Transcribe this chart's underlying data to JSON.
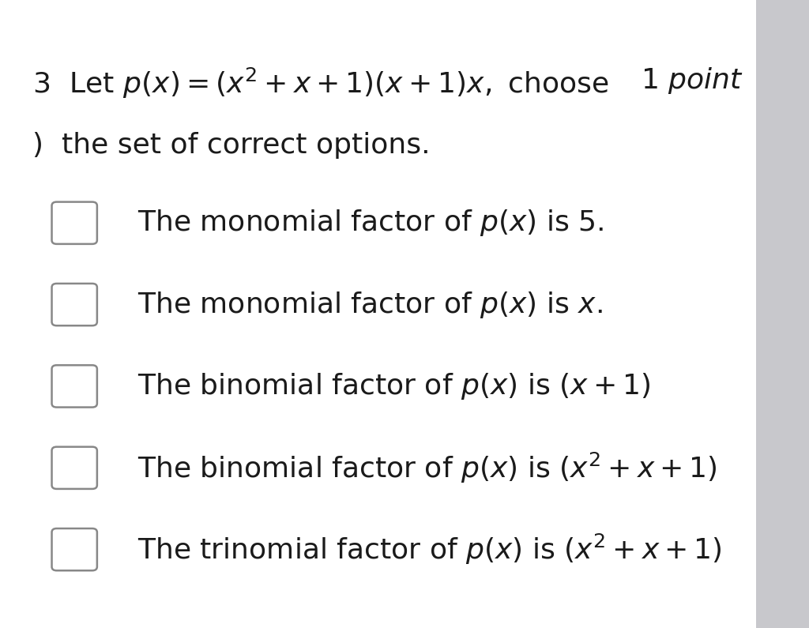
{
  "background_color": "#e8e8e8",
  "card_color": "#ffffff",
  "card_bg": "#f5f5f7",
  "text_color": "#1a1a1a",
  "checkbox_color": "#888888",
  "right_bar_color": "#c8c8cc",
  "title_line1_plain": "3  Let ",
  "title_line1_math": "$p(x) = (x^2 + x + 1)(x + 1)x$",
  "title_line1_end": ", choose  ",
  "title_bold": "\\mathbf{\\mathit{1\\ point}}",
  "title_line2": ")  the set of correct options.",
  "options_plain": [
    "The monomial factor of ",
    "The monomial factor of ",
    "The binomial factor of ",
    "The binomial factor of ",
    "The trinomial factor of "
  ],
  "options_math_middle": [
    "$p(x)$",
    "$p(x)$",
    "$p(x)$",
    "$p(x)$",
    "$p(x)$"
  ],
  "options_plain_end": [
    " is $5$.",
    " is $x$.",
    " is $(x + 1)$",
    " is $(x^2 + x + 1)$",
    " is $(x^2 + x + 1)$"
  ],
  "options_type": [
    "monomial",
    "monomial",
    "binomial",
    "binomial",
    "trinomial"
  ],
  "font_size_title": 26,
  "font_size_options": 26
}
